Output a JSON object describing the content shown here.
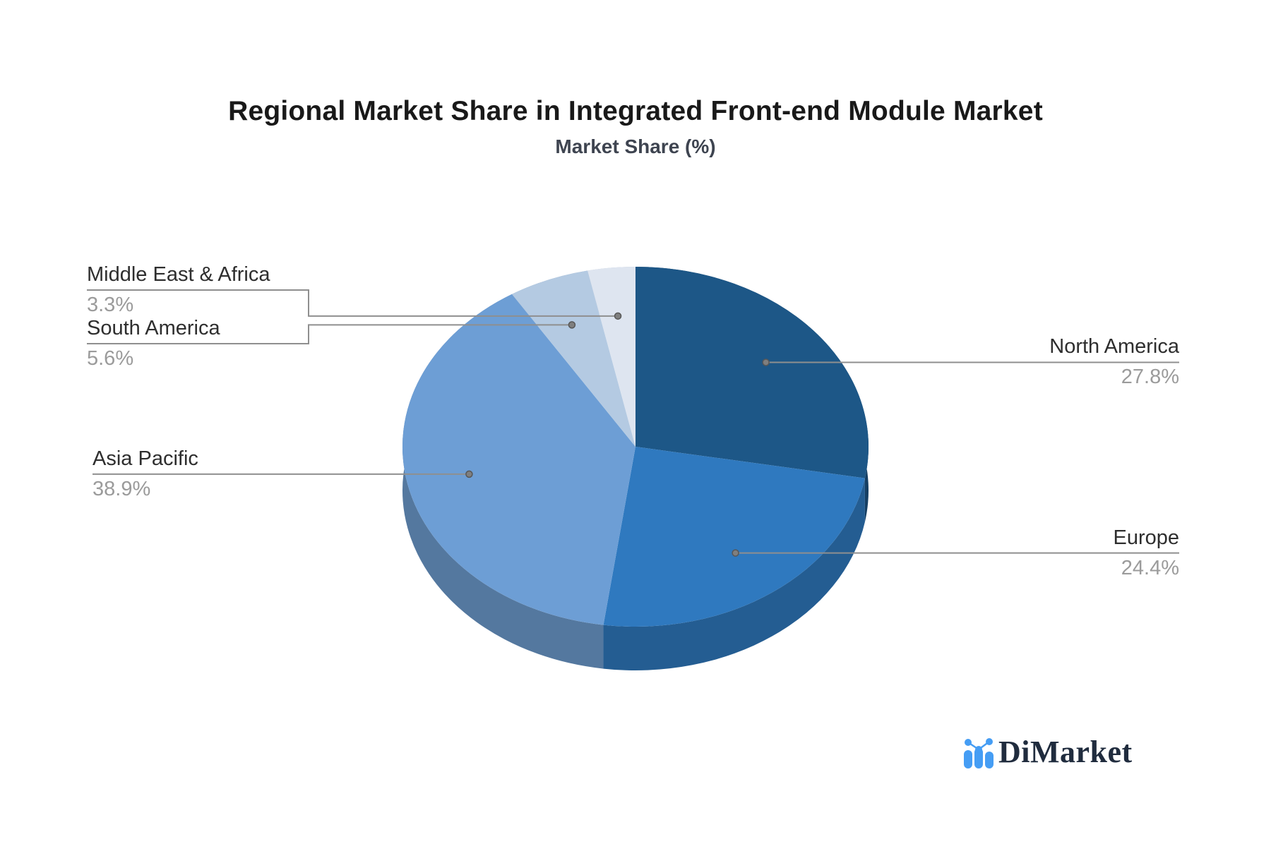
{
  "title": "Regional Market Share in Integrated Front-end Module Market",
  "subtitle": "Market Share (%)",
  "logo": {
    "text": "DiMarket",
    "icon": "bar-line-chart-icon",
    "accent_color": "#459df4",
    "text_color": "#202c3e"
  },
  "chart_data": {
    "type": "pie",
    "title": "Regional Market Share in Integrated Front-end Module Market",
    "subtitle": "Market Share (%)",
    "unit": "%",
    "effect": "3d",
    "start_angle_deg": 0,
    "direction": "clockwise",
    "legend_position": "callout-labels",
    "slices": [
      {
        "label": "North America",
        "value": 27.8,
        "display": "27.8%",
        "color": "#1d5787",
        "side_color": "#163f63"
      },
      {
        "label": "Europe",
        "value": 24.4,
        "display": "24.4%",
        "color": "#2f79bf",
        "side_color": "#245d92"
      },
      {
        "label": "Asia Pacific",
        "value": 38.9,
        "display": "38.9%",
        "color": "#6d9ed5",
        "side_color": "#54789f"
      },
      {
        "label": "South America",
        "value": 5.6,
        "display": "5.6%",
        "color": "#b4cae2",
        "side_color": "#8ba3bd"
      },
      {
        "label": "Middle East & Africa",
        "value": 3.3,
        "display": "3.3%",
        "color": "#dee5f0",
        "side_color": "#b0bccd"
      }
    ],
    "label_name_color": "#2e2e2e",
    "label_value_color": "#9b9b9b",
    "leader_line_color": "#8f8f8f",
    "leader_dot_fill": "#7f7f7f",
    "leader_dot_stroke": "#575757"
  }
}
